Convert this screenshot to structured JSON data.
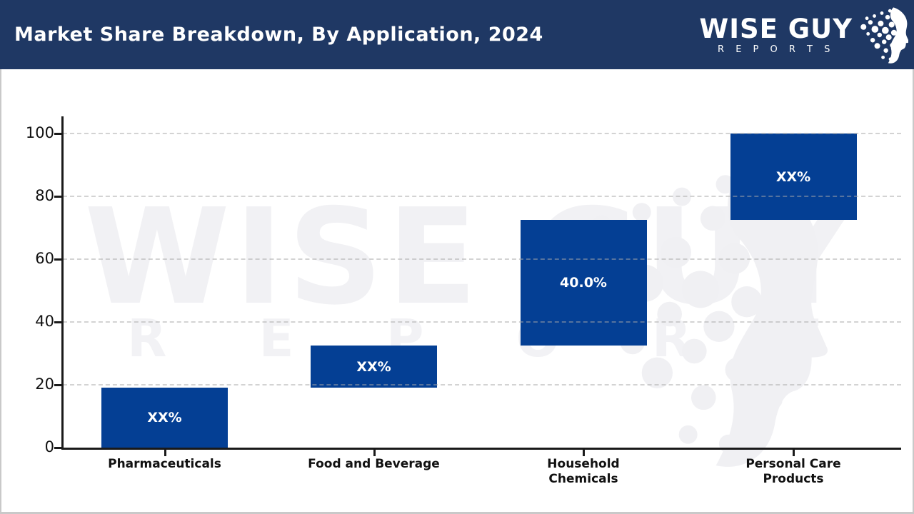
{
  "header": {
    "title": "Market Share Breakdown, By Application, 2024",
    "bg_color": "#1f3864",
    "logo": {
      "line1": "WISE GUY",
      "line2": "R E P O R T S"
    }
  },
  "watermark": {
    "line1": "WISE GUY",
    "line2": "R E P O R T S"
  },
  "chart_data": {
    "type": "bar",
    "subtype": "floating-segment-waterfall",
    "title": "Market Share Breakdown, By Application, 2024",
    "xlabel": "",
    "ylabel": "",
    "ylim": [
      0,
      100
    ],
    "yticks": [
      0,
      20,
      40,
      60,
      80,
      100
    ],
    "grid": "dashed-horizontal",
    "legend": false,
    "bar_color": "#043f94",
    "bar_label_color": "#ffffff",
    "categories": [
      "Pharmaceuticals",
      "Food and Beverage",
      "Household Chemicals",
      "Personal Care Products"
    ],
    "category_display_lines": [
      [
        "Pharmaceuticals"
      ],
      [
        "Food and Beverage"
      ],
      [
        "Household",
        "Chemicals"
      ],
      [
        "Personal Care",
        "Products"
      ]
    ],
    "segments": [
      {
        "category": "Pharmaceuticals",
        "start": 0,
        "end": 19,
        "value_label": "XX%"
      },
      {
        "category": "Food and Beverage",
        "start": 19,
        "end": 32.5,
        "value_label": "XX%"
      },
      {
        "category": "Household Chemicals",
        "start": 32.5,
        "end": 72.5,
        "value_label": "40.0%"
      },
      {
        "category": "Personal Care Products",
        "start": 72.5,
        "end": 100,
        "value_label": "XX%"
      }
    ]
  }
}
